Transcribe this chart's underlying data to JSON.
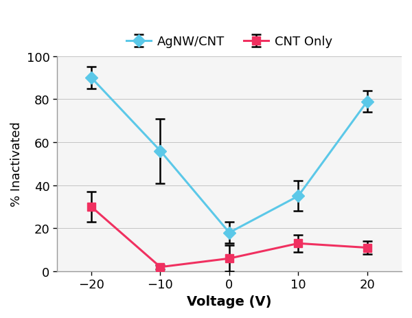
{
  "x": [
    -20,
    -10,
    0,
    10,
    20
  ],
  "agnw_cnt_y": [
    90,
    56,
    18,
    35,
    79
  ],
  "agnw_cnt_yerr": [
    5,
    15,
    5,
    7,
    5
  ],
  "cnt_only_y": [
    30,
    2,
    6,
    13,
    11
  ],
  "cnt_only_yerr": [
    7,
    1,
    6,
    4,
    3
  ],
  "agnw_color": "#5BC8E8",
  "cnt_color": "#F03060",
  "xlabel": "Voltage (V)",
  "ylabel": "% Inactivated",
  "xlim": [
    -25,
    25
  ],
  "ylim": [
    0,
    100
  ],
  "xticks": [
    -20,
    -10,
    0,
    10,
    20
  ],
  "yticks": [
    0,
    20,
    40,
    60,
    80,
    100
  ],
  "legend_agnw": "AgNW/CNT",
  "legend_cnt": "CNT Only",
  "xlabel_fontsize": 14,
  "ylabel_fontsize": 13,
  "tick_fontsize": 13,
  "legend_fontsize": 13,
  "bg_color": "#F5F5F5",
  "figure_bg": "#FFFFFF"
}
